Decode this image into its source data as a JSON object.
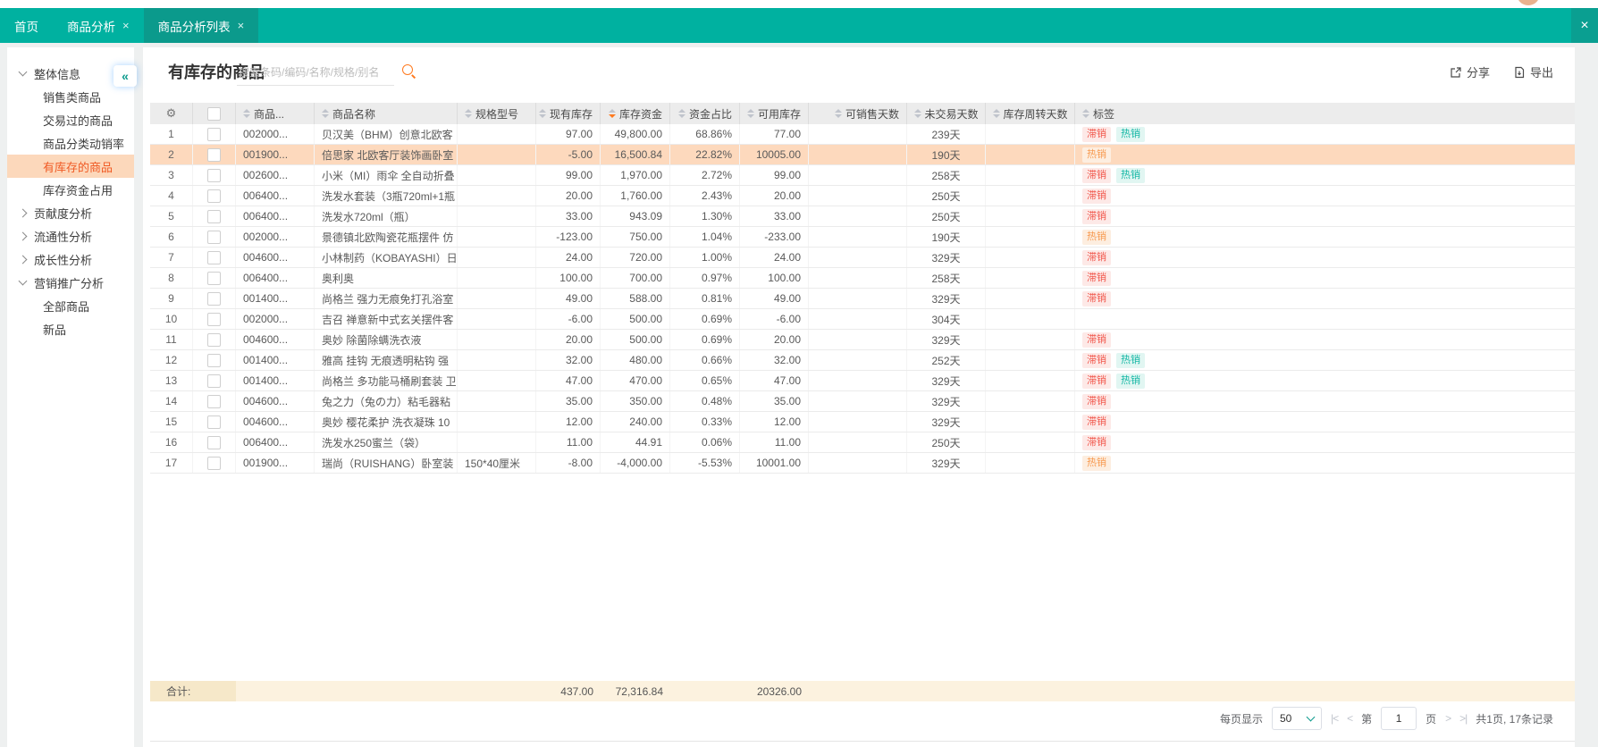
{
  "window": {
    "close_label": "×"
  },
  "tabs": {
    "items": [
      {
        "label": "首页",
        "closable": false,
        "active": false
      },
      {
        "label": "商品分析",
        "closable": true,
        "active": false
      },
      {
        "label": "商品分析列表",
        "closable": true,
        "active": true
      }
    ]
  },
  "sidebar": {
    "collapse_icon": "«",
    "items": [
      {
        "label": "整体信息",
        "level": 0,
        "expanded": true
      },
      {
        "label": "销售类商品",
        "level": 1
      },
      {
        "label": "交易过的商品",
        "level": 1
      },
      {
        "label": "商品分类动销率",
        "level": 1
      },
      {
        "label": "有库存的商品",
        "level": 1,
        "active": true
      },
      {
        "label": "库存资金占用",
        "level": 1
      },
      {
        "label": "贡献度分析",
        "level": 0,
        "expanded": false
      },
      {
        "label": "流通性分析",
        "level": 0,
        "expanded": false
      },
      {
        "label": "成长性分析",
        "level": 0,
        "expanded": false
      },
      {
        "label": "营销推广分析",
        "level": 0,
        "expanded": true
      },
      {
        "label": "全部商品",
        "level": 1
      },
      {
        "label": "新品",
        "level": 1
      }
    ]
  },
  "toolbar": {
    "title": "有库存的商品",
    "search_placeholder": "搜索条码/编码/名称/规格/别名",
    "share_label": "分享",
    "export_label": "导出"
  },
  "table": {
    "columns": [
      {
        "key": "idx",
        "label": "",
        "type": "gear",
        "align": "ac"
      },
      {
        "key": "check",
        "label": "",
        "type": "checkbox",
        "align": "ac"
      },
      {
        "key": "code",
        "label": "商品...",
        "sortable": true,
        "align": "al"
      },
      {
        "key": "name",
        "label": "商品名称",
        "sortable": true,
        "align": "al"
      },
      {
        "key": "spec",
        "label": "规格型号",
        "sortable": true,
        "align": "al"
      },
      {
        "key": "stock",
        "label": "现有库存",
        "sortable": true,
        "align": "ar"
      },
      {
        "key": "fund",
        "label": "库存资金",
        "sortable": true,
        "align": "ar",
        "sorted": "desc"
      },
      {
        "key": "ratio",
        "label": "资金占比",
        "sortable": true,
        "align": "ar"
      },
      {
        "key": "avail",
        "label": "可用库存",
        "sortable": true,
        "align": "ar"
      },
      {
        "key": "sale_days",
        "label": "可销售天数",
        "sortable": true,
        "align": "ar"
      },
      {
        "key": "no_trade_days",
        "label": "未交易天数",
        "sortable": true,
        "align": "ac"
      },
      {
        "key": "turnover_days",
        "label": "库存周转天数",
        "sortable": true,
        "align": "ac"
      },
      {
        "key": "tags",
        "label": "标签",
        "sortable": true,
        "align": "al"
      }
    ],
    "rows": [
      {
        "idx": "1",
        "code": "002000...",
        "name": "贝汉美（BHM）创意北欧客",
        "spec": "",
        "stock": "97.00",
        "fund": "49,800.00",
        "ratio": "68.86%",
        "avail": "77.00",
        "sale_days": "",
        "no_trade_days": "239天",
        "turnover_days": "",
        "highlight": false,
        "tags": [
          {
            "label": "滞销",
            "type": "red"
          },
          {
            "label": "热销",
            "type": "teal"
          }
        ]
      },
      {
        "idx": "2",
        "code": "001900...",
        "name": "倍思家 北欧客厅装饰画卧室",
        "spec": "",
        "stock": "-5.00",
        "fund": "16,500.84",
        "ratio": "22.82%",
        "avail": "10005.00",
        "sale_days": "",
        "no_trade_days": "190天",
        "turnover_days": "",
        "highlight": true,
        "tags": [
          {
            "label": "热销",
            "type": "orange"
          }
        ]
      },
      {
        "idx": "3",
        "code": "002600...",
        "name": "小米（MI）雨伞 全自动折叠",
        "spec": "",
        "stock": "99.00",
        "fund": "1,970.00",
        "ratio": "2.72%",
        "avail": "99.00",
        "sale_days": "",
        "no_trade_days": "258天",
        "turnover_days": "",
        "highlight": false,
        "tags": [
          {
            "label": "滞销",
            "type": "red"
          },
          {
            "label": "热销",
            "type": "teal"
          }
        ]
      },
      {
        "idx": "4",
        "code": "006400...",
        "name": "洗发水套装（3瓶720ml+1瓶",
        "spec": "",
        "stock": "20.00",
        "fund": "1,760.00",
        "ratio": "2.43%",
        "avail": "20.00",
        "sale_days": "",
        "no_trade_days": "250天",
        "turnover_days": "",
        "highlight": false,
        "tags": [
          {
            "label": "滞销",
            "type": "red"
          }
        ]
      },
      {
        "idx": "5",
        "code": "006400...",
        "name": "洗发水720ml（瓶）",
        "spec": "",
        "stock": "33.00",
        "fund": "943.09",
        "ratio": "1.30%",
        "avail": "33.00",
        "sale_days": "",
        "no_trade_days": "250天",
        "turnover_days": "",
        "highlight": false,
        "tags": [
          {
            "label": "滞销",
            "type": "red"
          }
        ]
      },
      {
        "idx": "6",
        "code": "002000...",
        "name": "景德镇北欧陶瓷花瓶摆件 仿",
        "spec": "",
        "stock": "-123.00",
        "fund": "750.00",
        "ratio": "1.04%",
        "avail": "-233.00",
        "sale_days": "",
        "no_trade_days": "190天",
        "turnover_days": "",
        "highlight": false,
        "tags": [
          {
            "label": "热销",
            "type": "orange"
          }
        ]
      },
      {
        "idx": "7",
        "code": "004600...",
        "name": "小林制药（KOBAYASHI）日",
        "spec": "",
        "stock": "24.00",
        "fund": "720.00",
        "ratio": "1.00%",
        "avail": "24.00",
        "sale_days": "",
        "no_trade_days": "329天",
        "turnover_days": "",
        "highlight": false,
        "tags": [
          {
            "label": "滞销",
            "type": "red"
          }
        ]
      },
      {
        "idx": "8",
        "code": "006400...",
        "name": "奥利奥",
        "spec": "",
        "stock": "100.00",
        "fund": "700.00",
        "ratio": "0.97%",
        "avail": "100.00",
        "sale_days": "",
        "no_trade_days": "258天",
        "turnover_days": "",
        "highlight": false,
        "tags": [
          {
            "label": "滞销",
            "type": "red"
          }
        ]
      },
      {
        "idx": "9",
        "code": "001400...",
        "name": "尚格兰 强力无痕免打孔浴室",
        "spec": "",
        "stock": "49.00",
        "fund": "588.00",
        "ratio": "0.81%",
        "avail": "49.00",
        "sale_days": "",
        "no_trade_days": "329天",
        "turnover_days": "",
        "highlight": false,
        "tags": [
          {
            "label": "滞销",
            "type": "red"
          }
        ]
      },
      {
        "idx": "10",
        "code": "002000...",
        "name": "吉召 禅意新中式玄关摆件客",
        "spec": "",
        "stock": "-6.00",
        "fund": "500.00",
        "ratio": "0.69%",
        "avail": "-6.00",
        "sale_days": "",
        "no_trade_days": "304天",
        "turnover_days": "",
        "highlight": false,
        "tags": []
      },
      {
        "idx": "11",
        "code": "004600...",
        "name": "奥妙 除菌除螨洗衣液",
        "spec": "",
        "stock": "20.00",
        "fund": "500.00",
        "ratio": "0.69%",
        "avail": "20.00",
        "sale_days": "",
        "no_trade_days": "329天",
        "turnover_days": "",
        "highlight": false,
        "tags": [
          {
            "label": "滞销",
            "type": "red"
          }
        ]
      },
      {
        "idx": "12",
        "code": "001400...",
        "name": "雅高 挂钩 无痕透明粘钩 强",
        "spec": "",
        "stock": "32.00",
        "fund": "480.00",
        "ratio": "0.66%",
        "avail": "32.00",
        "sale_days": "",
        "no_trade_days": "252天",
        "turnover_days": "",
        "highlight": false,
        "tags": [
          {
            "label": "滞销",
            "type": "red"
          },
          {
            "label": "热销",
            "type": "teal"
          }
        ]
      },
      {
        "idx": "13",
        "code": "001400...",
        "name": "尚格兰 多功能马桶刷套装 卫",
        "spec": "",
        "stock": "47.00",
        "fund": "470.00",
        "ratio": "0.65%",
        "avail": "47.00",
        "sale_days": "",
        "no_trade_days": "329天",
        "turnover_days": "",
        "highlight": false,
        "tags": [
          {
            "label": "滞销",
            "type": "red"
          },
          {
            "label": "热销",
            "type": "teal"
          }
        ]
      },
      {
        "idx": "14",
        "code": "004600...",
        "name": "兔之力（兔の力）粘毛器粘",
        "spec": "",
        "stock": "35.00",
        "fund": "350.00",
        "ratio": "0.48%",
        "avail": "35.00",
        "sale_days": "",
        "no_trade_days": "329天",
        "turnover_days": "",
        "highlight": false,
        "tags": [
          {
            "label": "滞销",
            "type": "red"
          }
        ]
      },
      {
        "idx": "15",
        "code": "004600...",
        "name": "奥妙 樱花柔护 洗衣凝珠 10",
        "spec": "",
        "stock": "12.00",
        "fund": "240.00",
        "ratio": "0.33%",
        "avail": "12.00",
        "sale_days": "",
        "no_trade_days": "329天",
        "turnover_days": "",
        "highlight": false,
        "tags": [
          {
            "label": "滞销",
            "type": "red"
          }
        ]
      },
      {
        "idx": "16",
        "code": "006400...",
        "name": "洗发水250蜜兰（袋）",
        "spec": "",
        "stock": "11.00",
        "fund": "44.91",
        "ratio": "0.06%",
        "avail": "11.00",
        "sale_days": "",
        "no_trade_days": "250天",
        "turnover_days": "",
        "highlight": false,
        "tags": [
          {
            "label": "滞销",
            "type": "red"
          }
        ]
      },
      {
        "idx": "17",
        "code": "001900...",
        "name": "瑞尚（RUISHANG）卧室装",
        "spec": "150*40厘米",
        "stock": "-8.00",
        "fund": "-4,000.00",
        "ratio": "-5.53%",
        "avail": "10001.00",
        "sale_days": "",
        "no_trade_days": "329天",
        "turnover_days": "",
        "highlight": false,
        "tags": [
          {
            "label": "热销",
            "type": "orange"
          }
        ]
      }
    ],
    "summary": {
      "label": "合计:",
      "stock": "437.00",
      "fund": "72,316.84",
      "avail": "20326.00"
    }
  },
  "pagination": {
    "page_size_label": "每页显示",
    "page_size": "50",
    "first": "|<",
    "prev": "<",
    "next": ">",
    "last": ">|",
    "prefix": "第",
    "page": "1",
    "suffix": "页",
    "total": "共1页, 17条记录"
  },
  "colors": {
    "topbar": "#00b1a0",
    "topbar_active_tab": "#0b9a8c",
    "sidebar_active_bg": "#fcd8bb",
    "sidebar_active_text": "#f05a24",
    "row_highlight": "#fdd9bd",
    "tag_stagnant": "#f1574c",
    "tag_hot_teal": "#15b7a5",
    "tag_hot_orange": "#f79a50",
    "sort_active": "#ff7a1f",
    "search_icon": "#ff7a1f"
  }
}
